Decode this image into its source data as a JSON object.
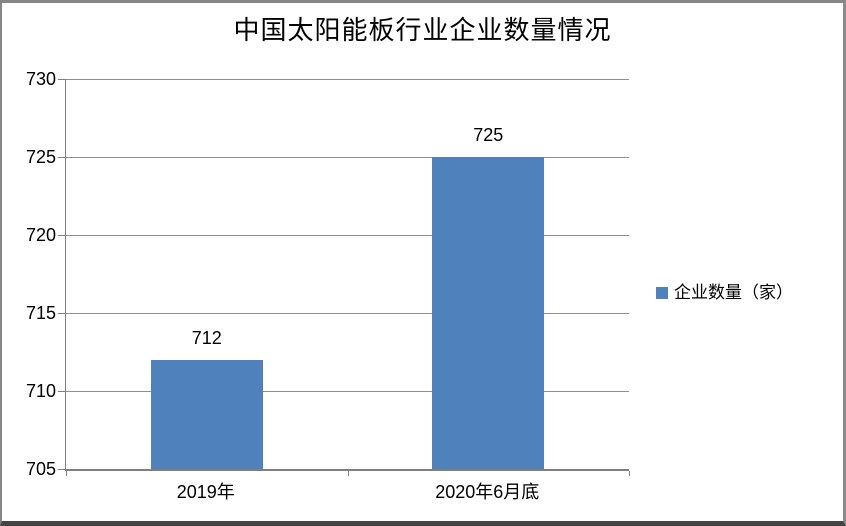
{
  "chart_data": {
    "type": "bar",
    "title": "中国太阳能板行业企业数量情况",
    "categories": [
      "2019年",
      "2020年6月底"
    ],
    "series": [
      {
        "name": "企业数量（家）",
        "values": [
          712,
          725
        ]
      }
    ],
    "data_labels": [
      "712",
      "725"
    ],
    "xlabel": "",
    "ylabel": "",
    "ylim": [
      705,
      730
    ],
    "yticks": [
      705,
      710,
      715,
      720,
      725,
      730
    ],
    "ytick_step": 5,
    "grid": true,
    "legend_position": "right",
    "bar_color": "#4F81BD",
    "gridline_color": "#8f8f8f",
    "axis_color": "#7f7f7f"
  },
  "legend": {
    "label": "企业数量（家）",
    "marker_color": "#4F81BD"
  }
}
